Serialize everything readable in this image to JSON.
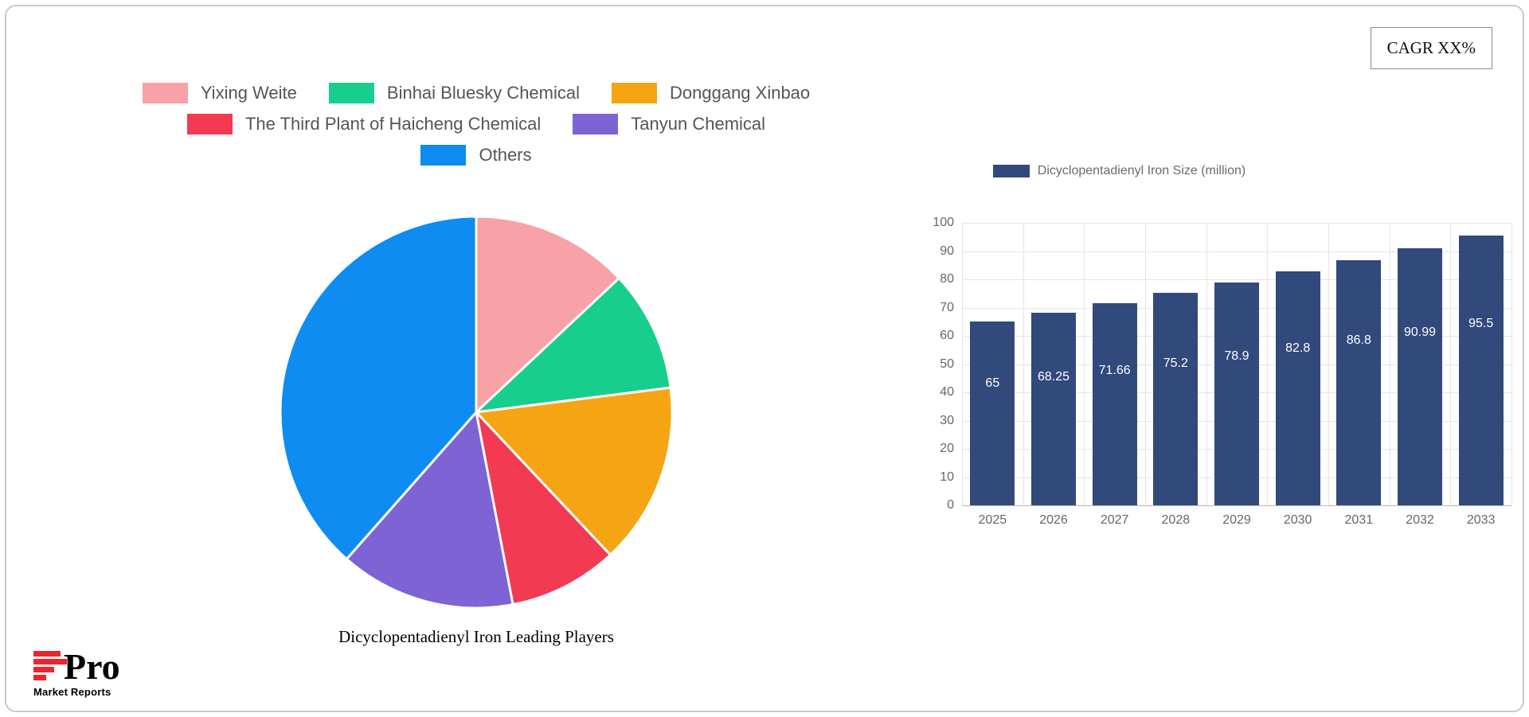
{
  "page": {
    "cagr_label": "CAGR XX%"
  },
  "logo": {
    "name": "Pro",
    "subtitle": "Market Reports",
    "accent_color": "#E9262B"
  },
  "chart_data": [
    {
      "type": "pie",
      "title": "Dicyclopentadienyl Iron Leading Players",
      "legend_position": "top",
      "slices": [
        {
          "label": "Yixing Weite",
          "value": 13,
          "color": "#F8A1A6"
        },
        {
          "label": "Binhai Bluesky Chemical",
          "value": 10,
          "color": "#17CE8D"
        },
        {
          "label": "Donggang Xinbao",
          "value": 15,
          "color": "#F5A414"
        },
        {
          "label": "The Third Plant of Haicheng Chemical",
          "value": 9,
          "color": "#F23A52"
        },
        {
          "label": "Tanyun Chemical",
          "value": 14.5,
          "color": "#7D63D4"
        },
        {
          "label": "Others",
          "value": 38.5,
          "color": "#0E8CF1"
        }
      ]
    },
    {
      "type": "bar",
      "legend": "Dicyclopentadienyl Iron Size (million)",
      "legend_position": "top",
      "categories": [
        "2025",
        "2026",
        "2027",
        "2028",
        "2029",
        "2030",
        "2031",
        "2032",
        "2033"
      ],
      "values": [
        65,
        68.25,
        71.66,
        75.2,
        78.9,
        82.8,
        86.8,
        90.99,
        95.5
      ],
      "bar_color": "#32497B",
      "ylim": [
        0,
        100
      ],
      "yticks": [
        0,
        10,
        20,
        30,
        40,
        50,
        60,
        70,
        80,
        90,
        100
      ],
      "grid": true
    }
  ]
}
